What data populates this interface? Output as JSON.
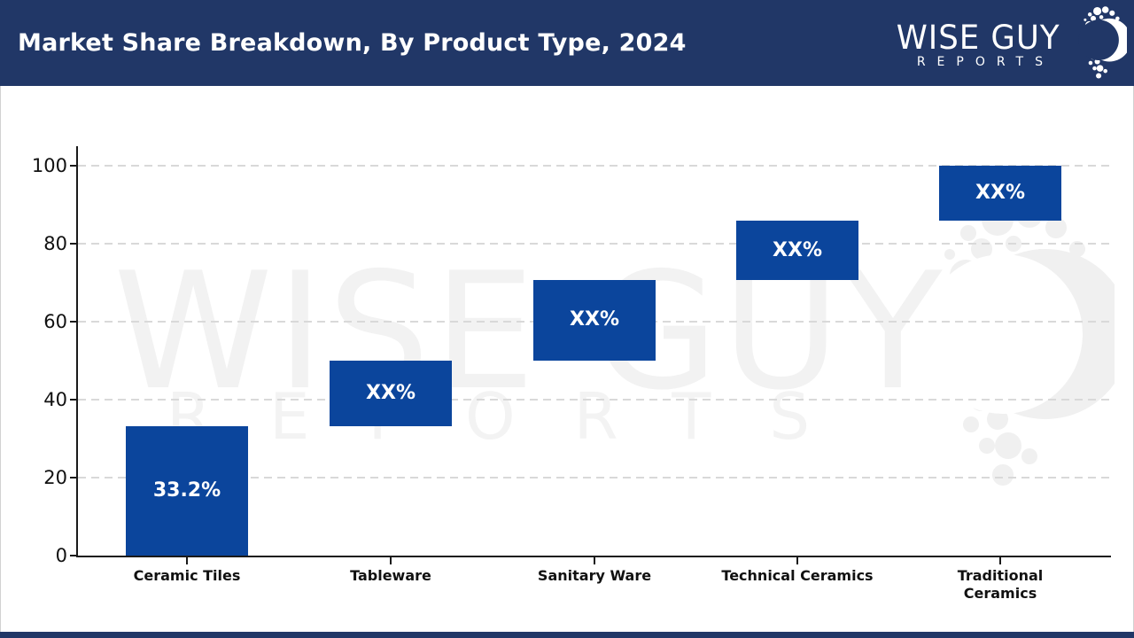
{
  "header": {
    "title": "Market Share Breakdown, By Product Type, 2024",
    "logo": {
      "wordmark": "WISE GUY",
      "subtitle": "REPORTS"
    }
  },
  "watermark": {
    "wordmark": "WISE GUY",
    "subtitle": "REPORTS"
  },
  "colors": {
    "header_bg": "#213767",
    "bar": "#0b459c",
    "gridline": "#d9d9d9",
    "axis": "#1a1a1a",
    "watermark": "#f2f2f2"
  },
  "chart_data": {
    "type": "bar",
    "subtype": "waterfall",
    "title": "Market Share Breakdown, By Product Type, 2024",
    "xlabel": "",
    "ylabel": "",
    "ylim": [
      0,
      100
    ],
    "y_ticks": [
      0,
      20,
      40,
      60,
      80,
      100
    ],
    "grid": true,
    "legend": false,
    "bar_color": "#0b459c",
    "categories": [
      "Ceramic Tiles",
      "Tableware",
      "Sanitary Ware",
      "Technical Ceramics",
      "Traditional\nCeramics"
    ],
    "segments": [
      {
        "category": "Ceramic Tiles",
        "start": 0,
        "end": 33.2,
        "label": "33.2%"
      },
      {
        "category": "Tableware",
        "start": 33.2,
        "end": 50.0,
        "label": "XX%"
      },
      {
        "category": "Sanitary Ware",
        "start": 50.0,
        "end": 70.7,
        "label": "XX%"
      },
      {
        "category": "Technical Ceramics",
        "start": 70.7,
        "end": 85.8,
        "label": "XX%"
      },
      {
        "category": "Traditional\nCeramics",
        "start": 85.8,
        "end": 100.0,
        "label": "XX%"
      }
    ]
  }
}
